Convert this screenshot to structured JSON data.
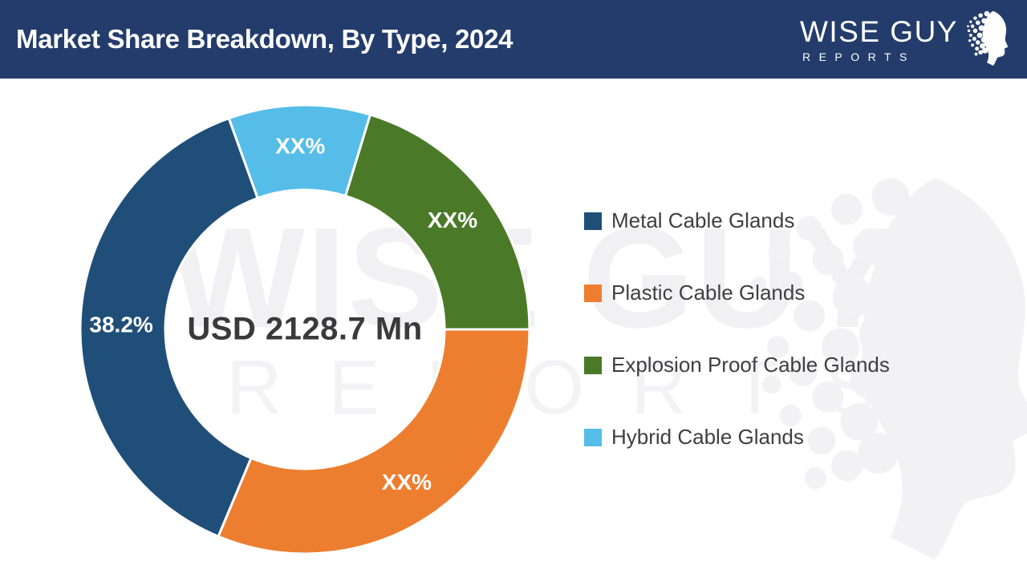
{
  "header": {
    "title": "Market Share Breakdown, By Type, 2024"
  },
  "logo": {
    "line1": "WISE GUY",
    "line2": "REPORTS",
    "face_icon": "face-dots-icon"
  },
  "watermark": {
    "line1": "WISE GUY",
    "line2": "REPORTS",
    "face_icon": "face-dots-icon"
  },
  "colors": {
    "header_bg": "#233C6B",
    "text_dark": "#3A3A3A",
    "legend_text": "#3F3F3F",
    "border_gray": "#D9D9D9",
    "slice_gap": "#FFFFFF"
  },
  "chart_data": {
    "type": "pie",
    "subtype": "donut",
    "title": "Market Share Breakdown, By Type, 2024",
    "center_label": "USD 2128.7 Mn",
    "units": "%",
    "start_angle_deg": -19.8,
    "inner_radius_ratio": 0.62,
    "legend_position": "right",
    "segments": [
      {
        "name": "Hybrid Cable Glands",
        "display_label": "XX%",
        "share_pct_est": 10.2,
        "color": "#56BDE8"
      },
      {
        "name": "Explosion Proof Cable Glands",
        "display_label": "XX%",
        "share_pct_est": 20.3,
        "color": "#4A7A28"
      },
      {
        "name": "Plastic Cable Glands",
        "display_label": "XX%",
        "share_pct_est": 31.3,
        "color": "#ED7E30"
      },
      {
        "name": "Metal Cable Glands",
        "display_label": "38.2%",
        "share_pct_est": 38.2,
        "color": "#1F4E79"
      }
    ],
    "legend_order": [
      "Metal Cable Glands",
      "Plastic Cable Glands",
      "Explosion Proof Cable Glands",
      "Hybrid Cable Glands"
    ]
  }
}
